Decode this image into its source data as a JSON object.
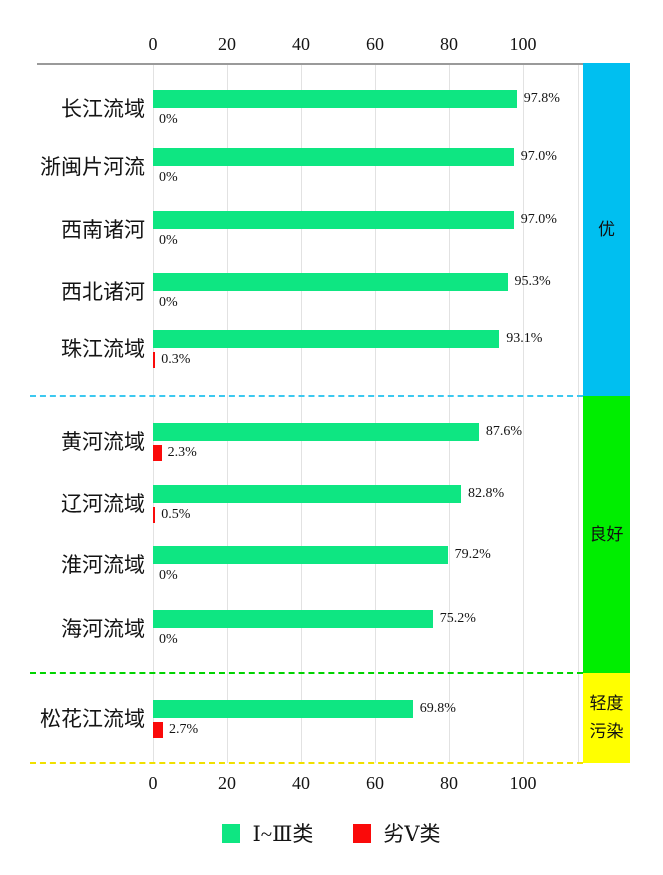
{
  "chart_data": {
    "type": "bar",
    "orientation": "horizontal",
    "x_axis": {
      "ticks": [
        0,
        20,
        40,
        60,
        80,
        100
      ],
      "range": [
        0,
        116
      ],
      "shown_top": true,
      "shown_bottom": true,
      "grid": true
    },
    "unit": "%",
    "series": [
      {
        "name": "Ⅰ~Ⅲ类",
        "color": "#0ee682"
      },
      {
        "name": "劣Ⅴ类",
        "color": "#fa0a0a"
      }
    ],
    "groups": [
      {
        "label": "优",
        "label_lines": [
          "优"
        ],
        "strip_color": "#00bff0",
        "separator_color": "#3cc8f0",
        "rows": [
          {
            "category": "长江流域",
            "good": 97.8,
            "good_label": "97.8%",
            "bad": 0,
            "bad_label": "0%"
          },
          {
            "category": "浙闽片河流",
            "good": 97.0,
            "good_label": "97.0%",
            "bad": 0,
            "bad_label": "0%"
          },
          {
            "category": "西南诸河",
            "good": 97.0,
            "good_label": "97.0%",
            "bad": 0,
            "bad_label": "0%"
          },
          {
            "category": "西北诸河",
            "good": 95.3,
            "good_label": "95.3%",
            "bad": 0,
            "bad_label": "0%"
          },
          {
            "category": "珠江流域",
            "good": 93.1,
            "good_label": "93.1%",
            "bad": 0.3,
            "bad_label": "0.3%"
          }
        ]
      },
      {
        "label": "良好",
        "label_lines": [
          "良好"
        ],
        "strip_color": "#00ee00",
        "separator_color": "#00d400",
        "rows": [
          {
            "category": "黄河流域",
            "good": 87.6,
            "good_label": "87.6%",
            "bad": 2.3,
            "bad_label": "2.3%"
          },
          {
            "category": "辽河流域",
            "good": 82.8,
            "good_label": "82.8%",
            "bad": 0.5,
            "bad_label": "0.5%"
          },
          {
            "category": "淮河流域",
            "good": 79.2,
            "good_label": "79.2%",
            "bad": 0,
            "bad_label": "0%"
          },
          {
            "category": "海河流域",
            "good": 75.2,
            "good_label": "75.2%",
            "bad": 0,
            "bad_label": "0%"
          }
        ]
      },
      {
        "label": "轻度污染",
        "label_lines": [
          "轻度",
          "污染"
        ],
        "strip_color": "#ffff00",
        "separator_color": "#f0e000",
        "rows": [
          {
            "category": "松花江流域",
            "good": 69.8,
            "good_label": "69.8%",
            "bad": 2.7,
            "bad_label": "2.7%"
          }
        ]
      }
    ],
    "legend": [
      {
        "label": "Ⅰ~Ⅲ类",
        "color": "#0ee682"
      },
      {
        "label": "劣Ⅴ类",
        "color": "#fa0a0a"
      }
    ],
    "legend_position": "bottom"
  }
}
